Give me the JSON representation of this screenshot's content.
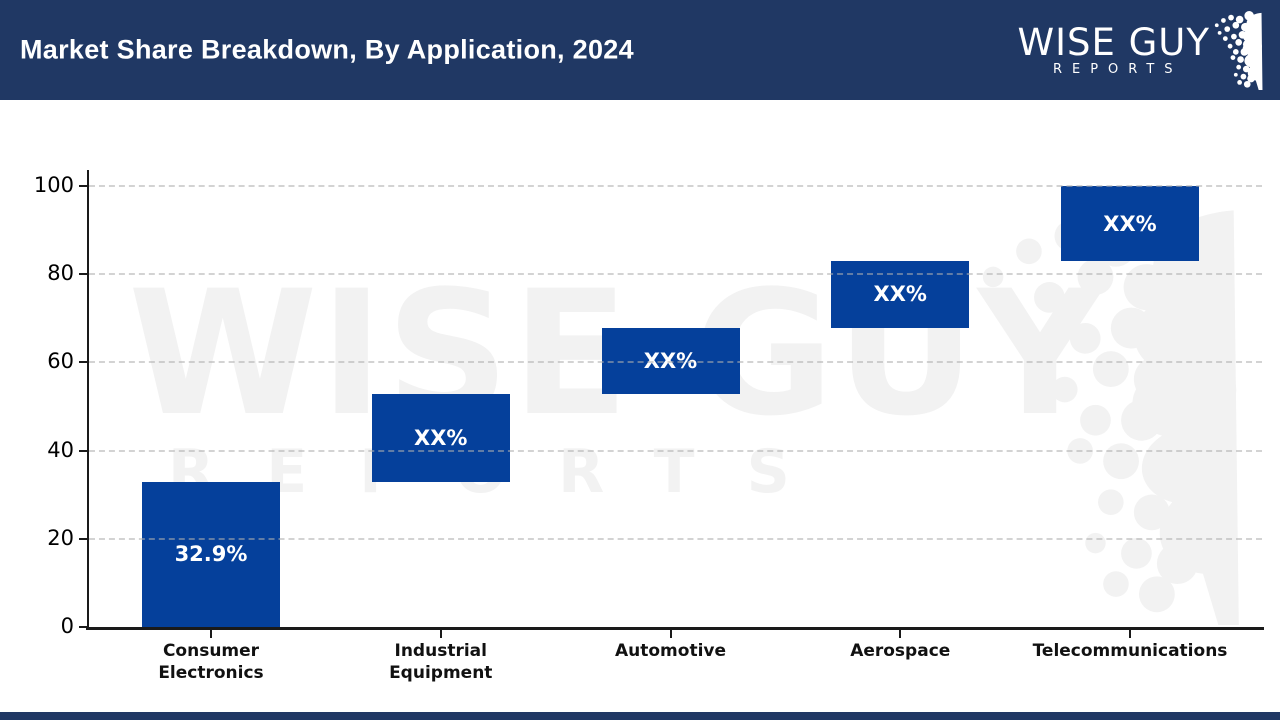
{
  "header": {
    "title": "Market Share Breakdown, By Application, 2024",
    "logo": {
      "line1": "WISE GUY",
      "line2": "REPORTS"
    }
  },
  "watermark": {
    "line1": "WISE GUY",
    "line2": "REPORTS"
  },
  "icons": {
    "logo_face": "dotted-head-profile-icon"
  },
  "colors": {
    "header_bg": "#203864",
    "footer_bg": "#203864",
    "bar": "#05409b",
    "bar_label": "#ffffff",
    "axis": "#1a1a1a",
    "grid": "#d9d9d9",
    "watermark": "#f2f2f2",
    "title_text": "#ffffff"
  },
  "chart_data": {
    "type": "bar",
    "subtype": "waterfall",
    "title": "Market Share Breakdown, By Application, 2024",
    "xlabel": "",
    "ylabel": "",
    "ylim": [
      0,
      105
    ],
    "yticks": [
      0,
      20,
      40,
      60,
      80,
      100
    ],
    "grid": "horizontal-dashed",
    "legend": null,
    "categories": [
      "Consumer\nElectronics",
      "Industrial\nEquipment",
      "Automotive",
      "Aerospace",
      "Telecommunications"
    ],
    "bars": [
      {
        "category": "Consumer Electronics",
        "start": 0,
        "end": 32.9,
        "label": "32.9%"
      },
      {
        "category": "Industrial Equipment",
        "start": 32.9,
        "end": 52.9,
        "label": "XX%"
      },
      {
        "category": "Automotive",
        "start": 52.9,
        "end": 67.9,
        "label": "XX%"
      },
      {
        "category": "Aerospace",
        "start": 67.9,
        "end": 82.9,
        "label": "XX%"
      },
      {
        "category": "Telecommunications",
        "start": 82.9,
        "end": 100,
        "label": "XX%"
      }
    ]
  }
}
